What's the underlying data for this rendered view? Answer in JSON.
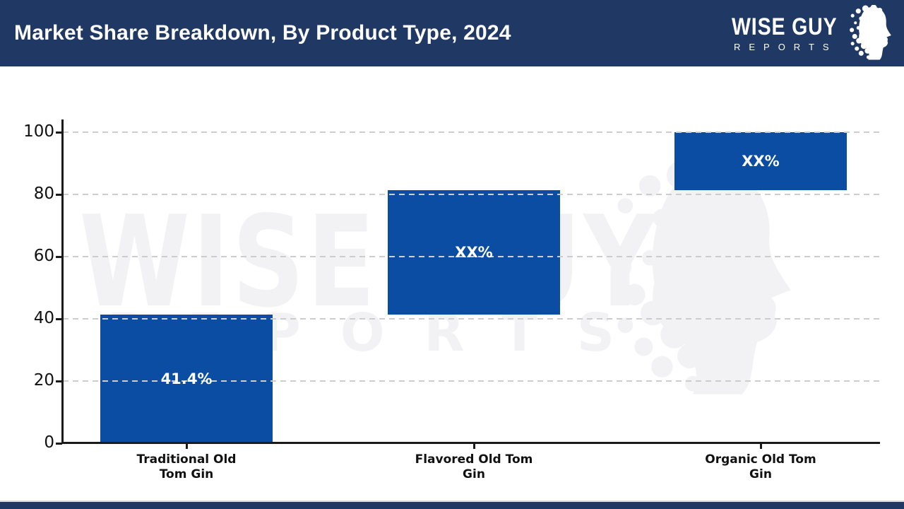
{
  "header": {
    "title": "Market Share Breakdown, By Product Type, 2024"
  },
  "logo": {
    "name_top": "WISE GUY",
    "name_bottom": "REPORTS"
  },
  "watermark": {
    "text_top": "WISE GUY",
    "text_bottom": "REPORTS"
  },
  "chart_data": {
    "type": "waterfall",
    "title": "Market Share Breakdown, By Product Type, 2024",
    "categories": [
      [
        "Traditional Old",
        "Tom Gin"
      ],
      [
        "Flavored Old Tom",
        "Gin"
      ],
      [
        "Organic Old Tom",
        "Gin"
      ]
    ],
    "segments": [
      {
        "category": "Traditional Old Tom Gin",
        "label": "41.4%",
        "start": 0,
        "end": 41.4
      },
      {
        "category": "Flavored Old Tom Gin",
        "label": "XX%",
        "start": 41.4,
        "end": 81.4
      },
      {
        "category": "Organic Old Tom Gin",
        "label": "XX%",
        "start": 81.4,
        "end": 100
      }
    ],
    "xlabel": "",
    "ylabel": "",
    "ylim": [
      0,
      100
    ],
    "yticks": [
      0,
      20,
      40,
      60,
      80,
      100
    ],
    "grid": "horizontal-dashed",
    "legend": "none"
  },
  "colors": {
    "header_bg": "#1f3864",
    "footer_bg": "#1f3864",
    "title_text": "#ffffff",
    "bar": "#0b4da2",
    "bar_label_text": "#ffffff",
    "watermark": "#f2f2f4",
    "gridline": "#cdcdcd",
    "axis": "#1a1a1a"
  }
}
